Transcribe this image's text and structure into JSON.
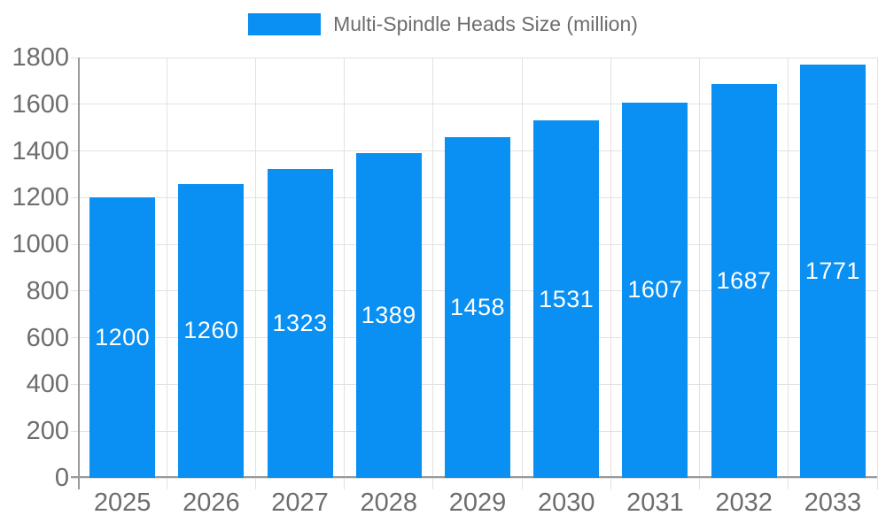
{
  "legend": {
    "label": "Multi-Spindle Heads Size (million)"
  },
  "chart_data": {
    "type": "bar",
    "title": "Multi-Spindle Heads Size (million)",
    "categories": [
      "2025",
      "2026",
      "2027",
      "2028",
      "2029",
      "2030",
      "2031",
      "2032",
      "2033"
    ],
    "series": [
      {
        "name": "Multi-Spindle Heads Size (million)",
        "values": [
          1200,
          1260,
          1323,
          1389,
          1458,
          1531,
          1607,
          1687,
          1771
        ]
      }
    ],
    "data_labels_shown": true,
    "xlabel": "",
    "ylabel": "",
    "ylim": [
      0,
      1800
    ],
    "y_ticks": [
      0,
      200,
      400,
      600,
      800,
      1000,
      1200,
      1400,
      1600,
      1800
    ],
    "grid": true,
    "legend_position": "top",
    "colors": {
      "bar": "#0A8FF2",
      "bar_label": "#FFFFFF",
      "axis_text": "#6D6D6D",
      "grid_line": "#E2E2E2",
      "axis_line": "#9A9A9A",
      "background": "#FFFFFF"
    }
  }
}
